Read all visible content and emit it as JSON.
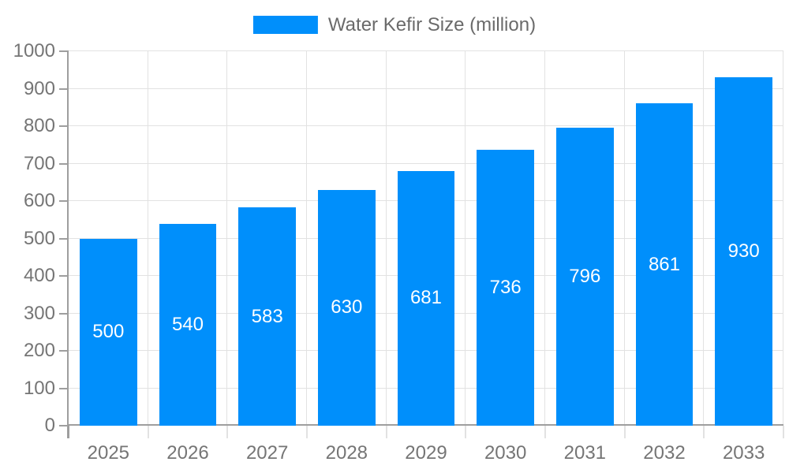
{
  "chart_data": {
    "type": "bar",
    "title": "",
    "legend_label": "Water Kefir Size (million)",
    "legend_position": "top",
    "categories": [
      "2025",
      "2026",
      "2027",
      "2028",
      "2029",
      "2030",
      "2031",
      "2032",
      "2033"
    ],
    "series": [
      {
        "name": "Water Kefir Size (million)",
        "values": [
          500,
          540,
          583,
          630,
          681,
          736,
          796,
          861,
          930
        ]
      }
    ],
    "xlabel": "",
    "ylabel": "",
    "ylim": [
      0,
      1000
    ],
    "y_tick_step": 100,
    "y_tick_labels": [
      "0",
      "100",
      "200",
      "300",
      "400",
      "500",
      "600",
      "700",
      "800",
      "900",
      "1000"
    ],
    "grid": true,
    "value_label_position": "inside-center",
    "colors": {
      "bar": "#008ffb",
      "value_label": "#ffffff",
      "axis_label": "#757575",
      "legend_text": "#6a6a6a",
      "grid_line": "#e2e2e2",
      "axis_line": "#9e9e9e",
      "background": "#ffffff"
    }
  }
}
